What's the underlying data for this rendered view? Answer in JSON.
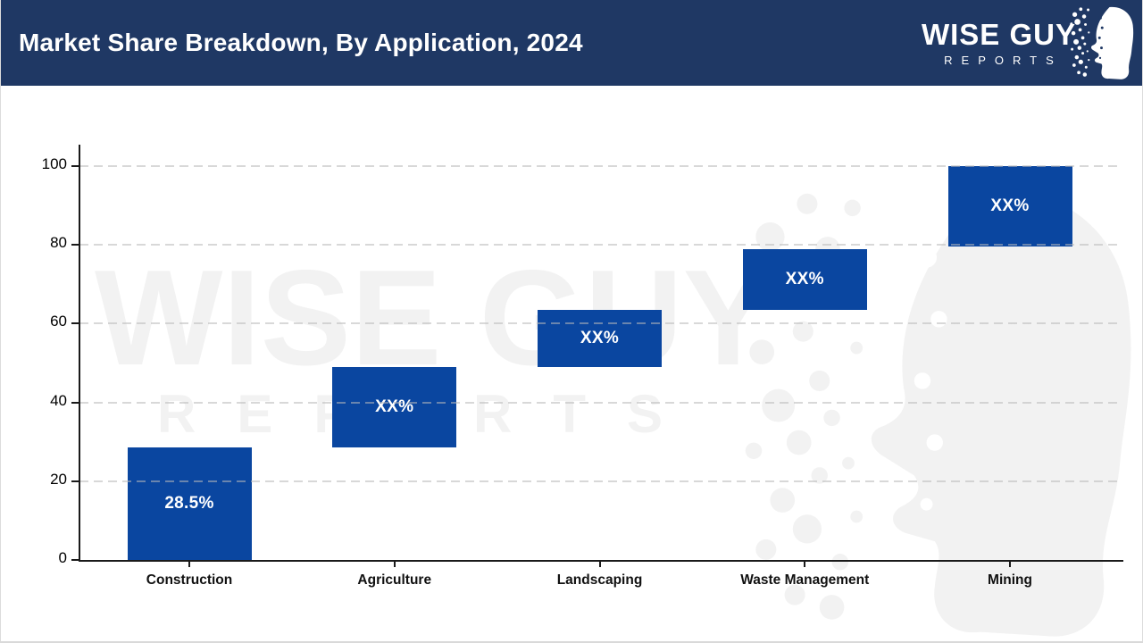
{
  "header": {
    "title": "Market Share Breakdown, By Application, 2024",
    "logo": {
      "wise_guy": "WISE GUY",
      "reports": "REPORTS"
    }
  },
  "watermark": {
    "wise_guy": "WISE GUY",
    "reports": "REPORTS"
  },
  "colors": {
    "header_bg": "#1f3864",
    "bar": "#0a46a0",
    "bar_value_label": "#ffffff",
    "gridline": "#dddddd",
    "axis": "#1a1a1a",
    "watermark": "#f2f2f2"
  },
  "chart_data": {
    "type": "bar",
    "subtype": "waterfall",
    "title": "Market Share Breakdown, By Application, 2024",
    "categories": [
      "Construction",
      "Agriculture",
      "Landscaping",
      "Waste Management",
      "Mining"
    ],
    "segments": [
      {
        "category": "Construction",
        "start": 0,
        "end": 28.5,
        "label": "28.5%"
      },
      {
        "category": "Agriculture",
        "start": 28.5,
        "end": 49,
        "label": "XX%"
      },
      {
        "category": "Landscaping",
        "start": 49,
        "end": 63.5,
        "label": "XX%"
      },
      {
        "category": "Waste Management",
        "start": 63.5,
        "end": 79,
        "label": "XX%"
      },
      {
        "category": "Mining",
        "start": 79.5,
        "end": 100,
        "label": "XX%"
      }
    ],
    "yticks": [
      0,
      20,
      40,
      60,
      80,
      100
    ],
    "ylim": [
      0,
      105.5
    ],
    "xlabel": "",
    "ylabel": "",
    "grid": "horizontal-dashed",
    "legend": "none"
  }
}
